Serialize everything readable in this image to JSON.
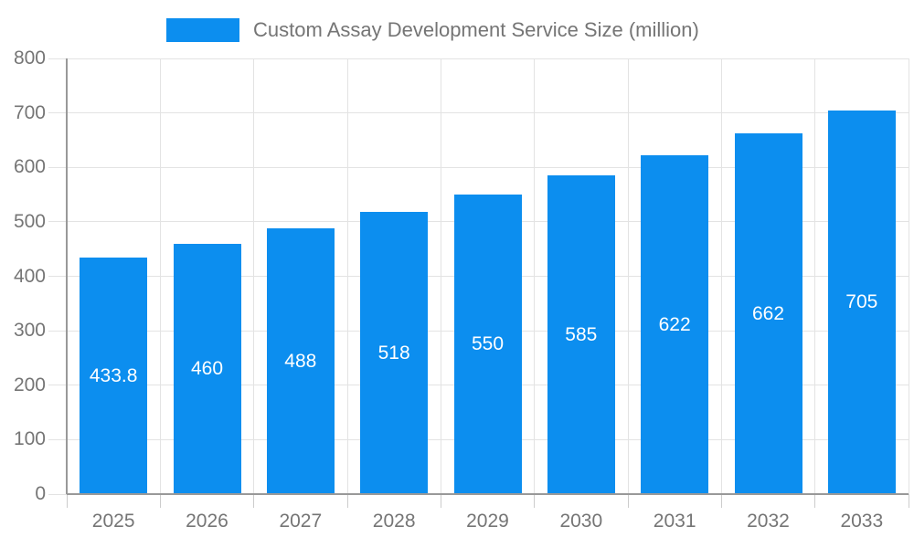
{
  "legend": {
    "label": "Custom Assay Development Service Size (million)"
  },
  "chart_data": {
    "type": "bar",
    "title": "Custom Assay Development Service Size (million)",
    "series_name": "Custom Assay Development Service Size (million)",
    "categories": [
      "2025",
      "2026",
      "2027",
      "2028",
      "2029",
      "2030",
      "2031",
      "2032",
      "2033"
    ],
    "values": [
      433.8,
      460,
      488,
      518,
      550,
      585,
      622,
      662,
      705
    ],
    "value_labels": [
      "433.8",
      "460",
      "488",
      "518",
      "550",
      "585",
      "622",
      "662",
      "705"
    ],
    "xlabel": "",
    "ylabel": "",
    "ylim": [
      0,
      800
    ],
    "yticks": [
      0,
      100,
      200,
      300,
      400,
      500,
      600,
      700,
      800
    ],
    "grid": true,
    "legend_position": "top",
    "colors": {
      "bar": "#0C8EEF",
      "value_label_text": "#FFFFFF",
      "axis_text": "#757575",
      "grid_line": "#E3E3E3",
      "axis_line": "#999999",
      "tick_line": "#CCCCCC",
      "background": "#FFFFFF"
    }
  }
}
